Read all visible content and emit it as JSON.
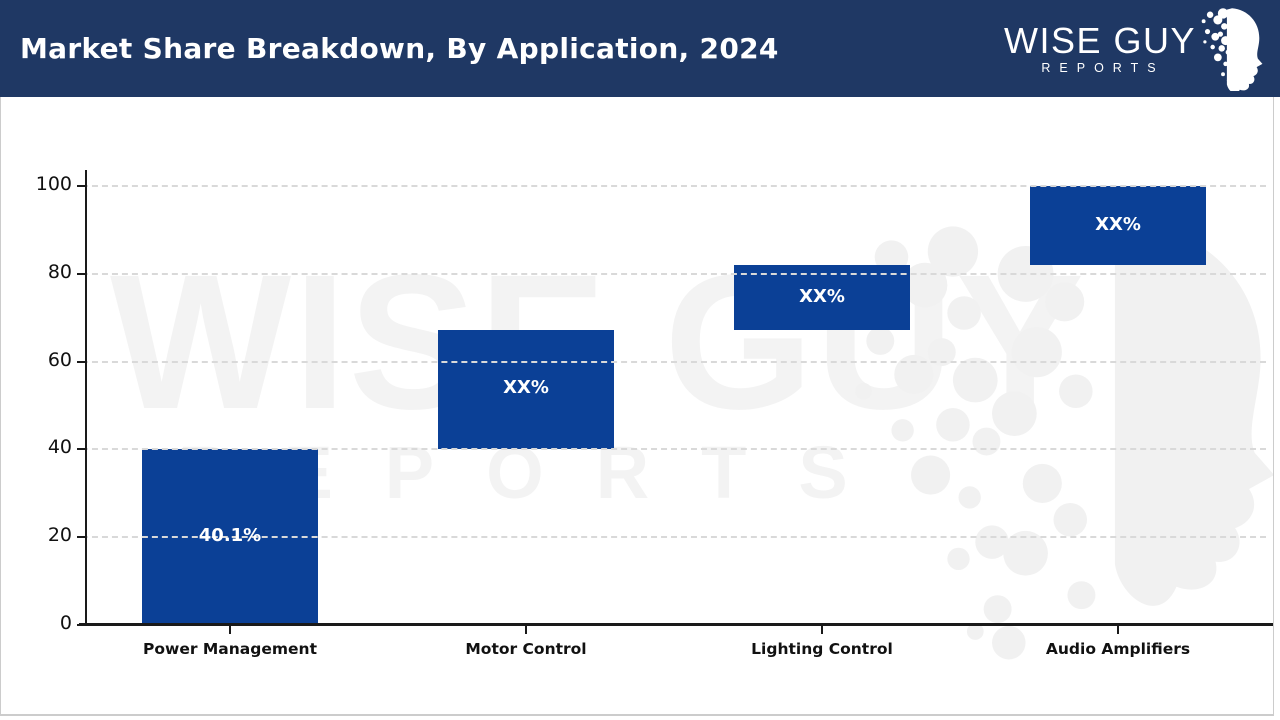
{
  "header": {
    "title": "Market Share Breakdown, By Application, 2024",
    "background_color": "#1f3864",
    "logo": {
      "wordmark": "WISE GUY",
      "subtitle": "REPORTS"
    }
  },
  "watermark": {
    "wordmark": "WISE GUY",
    "subtitle": "REPORTS"
  },
  "chart_data": {
    "type": "bar",
    "subtype": "waterfall",
    "title": "Market Share Breakdown, By Application, 2024",
    "categories": [
      "Power Management",
      "Motor Control",
      "Lighting Control",
      "Audio Amplifiers"
    ],
    "segments": [
      {
        "category": "Power Management",
        "start": 0,
        "end": 40.1,
        "size": 40.1,
        "label": "40.1%"
      },
      {
        "category": "Motor Control",
        "start": 40.1,
        "end": 67.2,
        "size": 27.1,
        "label": "XX%"
      },
      {
        "category": "Lighting Control",
        "start": 67.2,
        "end": 81.9,
        "size": 14.7,
        "label": "XX%"
      },
      {
        "category": "Audio Amplifiers",
        "start": 81.9,
        "end": 100,
        "size": 18.1,
        "label": "XX%"
      }
    ],
    "yticks": [
      0,
      20,
      40,
      60,
      80,
      100
    ],
    "ylim": [
      0,
      104
    ],
    "xlabel": "",
    "ylabel": "",
    "grid": {
      "axis": "y",
      "style": "dashed",
      "color": "#d9d9d9"
    },
    "bar_color": "#0b4096",
    "bar_label_color": "#ffffff",
    "legend_position": "none"
  }
}
